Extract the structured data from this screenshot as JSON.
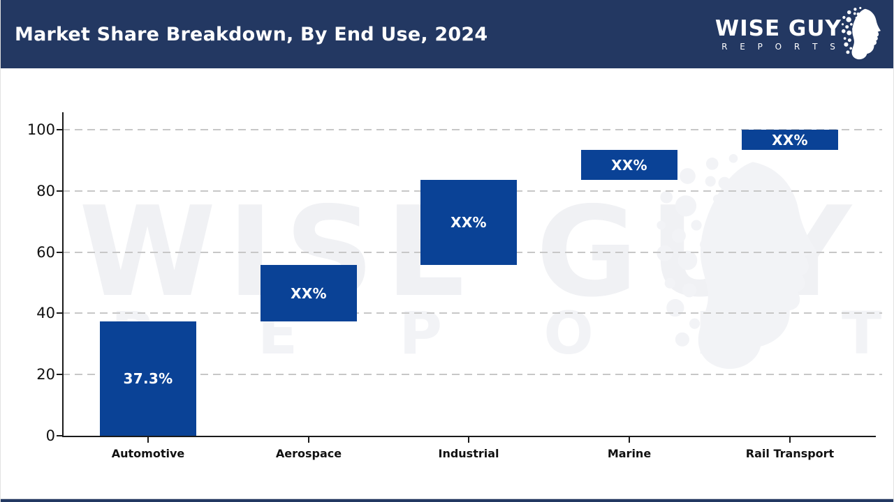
{
  "header": {
    "title": "Market Share Breakdown, By End Use, 2024",
    "logo": {
      "line1": "WISE GUY",
      "line2": "R E P O R T S"
    }
  },
  "watermark": {
    "line1": "WISE GUY",
    "line2": "R E P O R T S"
  },
  "colors": {
    "header_bg": "#233862",
    "bar_blue": "#0a4296",
    "gridline_gray": "#c7c7c7",
    "watermark_gray": "#f0f1f4",
    "text_black": "#111111",
    "bar_label_white": "#ffffff"
  },
  "chart_data": {
    "type": "bar",
    "subtype": "waterfall",
    "title": "Market Share Breakdown, By End Use, 2024",
    "categories": [
      "Automotive",
      "Aerospace",
      "Industrial",
      "Marine",
      "Rail Transport"
    ],
    "segments": [
      {
        "category": "Automotive",
        "start": 0,
        "end": 37.3,
        "label": "37.3%"
      },
      {
        "category": "Aerospace",
        "start": 37.3,
        "end": 55.8,
        "label": "XX%"
      },
      {
        "category": "Industrial",
        "start": 55.8,
        "end": 83.6,
        "label": "XX%"
      },
      {
        "category": "Marine",
        "start": 83.6,
        "end": 93.3,
        "label": "XX%"
      },
      {
        "category": "Rail Transport",
        "start": 93.3,
        "end": 100.0,
        "label": "XX%"
      }
    ],
    "xlabel": "",
    "ylabel": "",
    "yticks": [
      0,
      20,
      40,
      60,
      80,
      100
    ],
    "ylim": [
      0,
      106
    ],
    "grid": "horizontal-dashed",
    "legend": "none",
    "bar_color": "#0a4296"
  }
}
